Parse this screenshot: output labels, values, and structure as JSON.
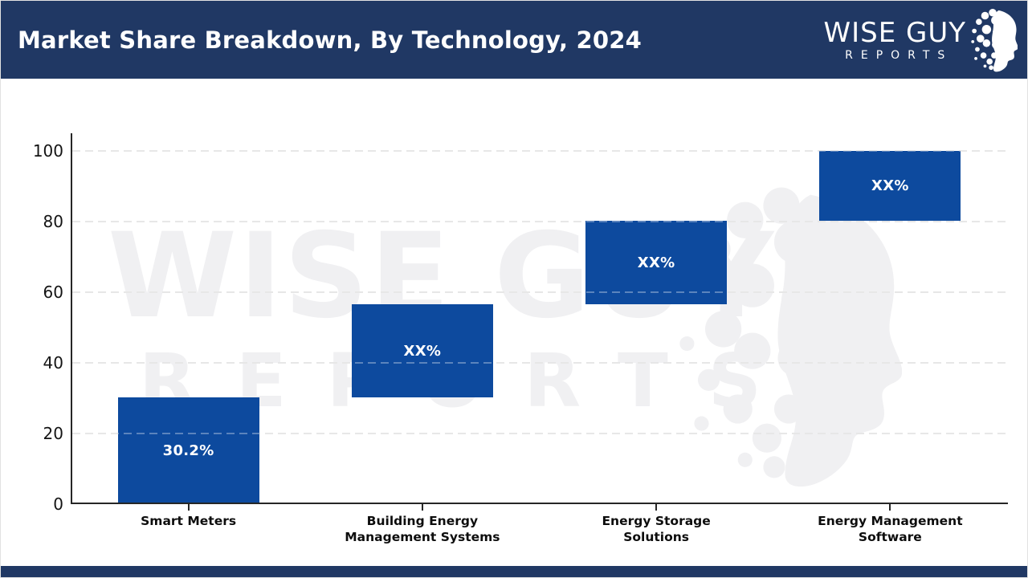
{
  "header": {
    "title": "Market Share Breakdown, By Technology, 2024",
    "logo": {
      "name": "WISE GUY",
      "sub": "REPORTS"
    }
  },
  "watermark": {
    "name": "WISE GUY",
    "sub": "REPORTS"
  },
  "colors": {
    "header_bg": "#203864",
    "footer_bg": "#203864",
    "bar": "#0d4a9e",
    "watermark": "#f0f0f2",
    "grid": "#dcdcdc",
    "axis": "#262626",
    "bar_label_text": "#ffffff",
    "title_text": "#ffffff"
  },
  "chart_data": {
    "type": "bar",
    "subtype": "waterfall",
    "title": "Market Share Breakdown, By Technology, 2024",
    "ylim": [
      0,
      100
    ],
    "yticks": [
      0,
      20,
      40,
      60,
      80,
      100
    ],
    "grid": "horizontal-dashed",
    "legend": "none",
    "bars": [
      {
        "category": "Smart Meters",
        "category_lines": [
          "Smart Meters"
        ],
        "start": 0,
        "end": 30.2,
        "value_label": "30.2%"
      },
      {
        "category": "Building Energy Management Systems",
        "category_lines": [
          "Building Energy",
          "Management Systems"
        ],
        "start": 30.2,
        "end": 56.5,
        "value_label": "XX%"
      },
      {
        "category": "Energy Storage Solutions",
        "category_lines": [
          "Energy Storage",
          "Solutions"
        ],
        "start": 56.5,
        "end": 80.3,
        "value_label": "XX%"
      },
      {
        "category": "Energy Management Software",
        "category_lines": [
          "Energy Management",
          "Software"
        ],
        "start": 80.3,
        "end": 100,
        "value_label": "XX%"
      }
    ]
  }
}
